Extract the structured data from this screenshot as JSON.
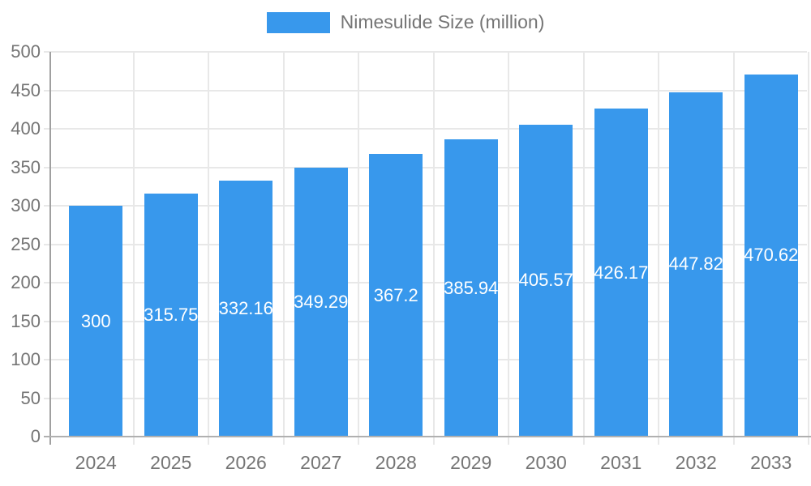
{
  "chart_data": {
    "type": "bar",
    "title": "Nimesulide Size (million)",
    "legend": {
      "entries": [
        "Nimesulide Size (million)"
      ],
      "position": "top"
    },
    "categories": [
      "2024",
      "2025",
      "2026",
      "2027",
      "2028",
      "2029",
      "2030",
      "2031",
      "2032",
      "2033"
    ],
    "series": [
      {
        "name": "Nimesulide Size (million)",
        "values": [
          300,
          315.75,
          332.16,
          349.29,
          367.2,
          385.94,
          405.57,
          426.17,
          447.82,
          470.62
        ],
        "value_labels": [
          "300",
          "315.75",
          "332.16",
          "349.29",
          "367.2",
          "385.94",
          "405.57",
          "426.17",
          "447.82",
          "470.62"
        ]
      }
    ],
    "xlabel": "",
    "ylabel": "",
    "ylim": [
      0,
      500
    ],
    "ytick_step": 50,
    "ytick_labels": [
      "0",
      "50",
      "100",
      "150",
      "200",
      "250",
      "300",
      "350",
      "400",
      "450",
      "500"
    ],
    "grid": true,
    "value_labels_inside_bars": true,
    "colors": {
      "bar": "#3898ec",
      "bar_label_text": "#ffffff",
      "axis_text": "#757575",
      "legend_text": "#757575",
      "axis_line": "#a0a0a0",
      "gridline": "#e8e8e8",
      "background": "#ffffff"
    }
  }
}
